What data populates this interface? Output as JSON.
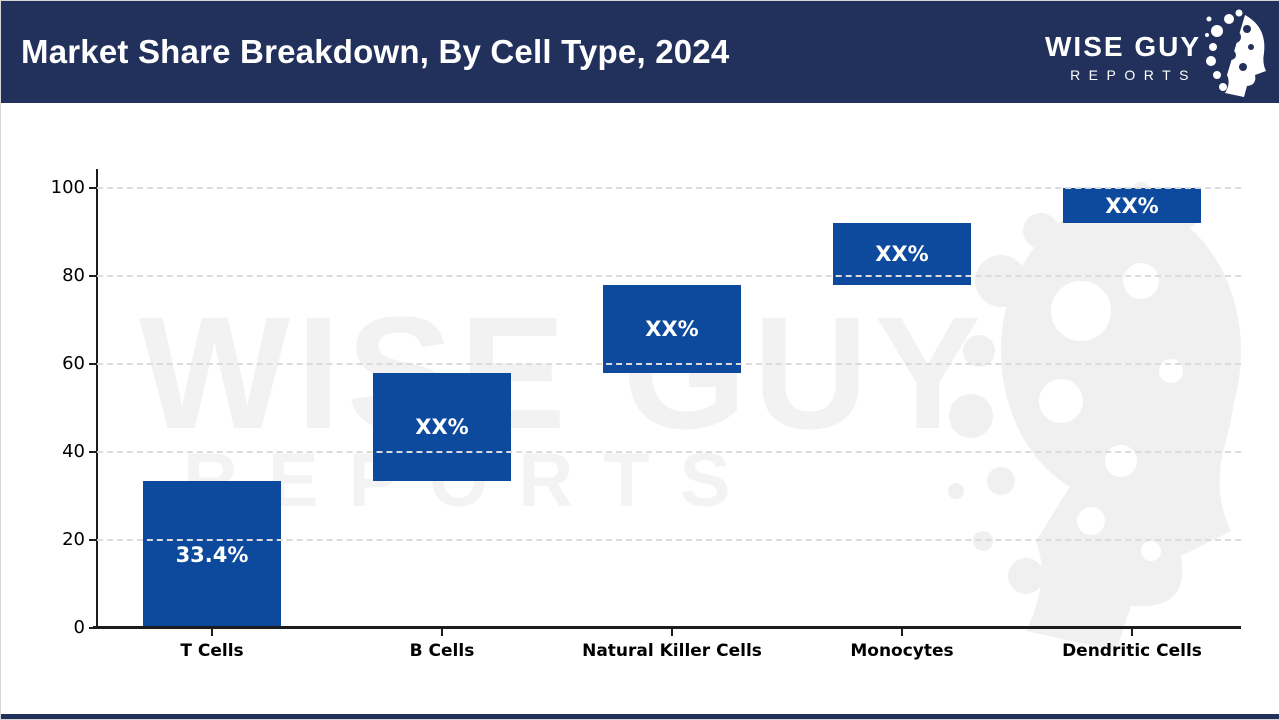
{
  "header": {
    "title": "Market Share Breakdown, By Cell Type, 2024",
    "logo_line1": "WISE GUY",
    "logo_line2": "REPORTS"
  },
  "watermark": {
    "line1": "WISE GUY",
    "line2": "REPORTS"
  },
  "chart_data": {
    "type": "bar",
    "variant": "waterfall",
    "title": "Market Share Breakdown, By Cell Type, 2024",
    "categories": [
      "T Cells",
      "B Cells",
      "Natural Killer Cells",
      "Monocytes",
      "Dendritic Cells"
    ],
    "segments": [
      {
        "category": "T Cells",
        "start": 0,
        "end": 33.4,
        "label": "33.4%"
      },
      {
        "category": "B Cells",
        "start": 33.4,
        "end": 57.9,
        "label": "XX%"
      },
      {
        "category": "Natural Killer Cells",
        "start": 57.9,
        "end": 77.9,
        "label": "XX%"
      },
      {
        "category": "Monocytes",
        "start": 77.9,
        "end": 92,
        "label": "XX%"
      },
      {
        "category": "Dendritic Cells",
        "start": 92,
        "end": 100,
        "label": "XX%"
      }
    ],
    "yticks": [
      0,
      20,
      40,
      60,
      80,
      100
    ],
    "ylim": [
      0,
      100
    ],
    "xlabel": "",
    "ylabel": "",
    "legend": "none",
    "grid": "horizontal-dashed"
  },
  "colors": {
    "header_bg": "#22305C",
    "footer_bg": "#22305C",
    "bar": "#0d4a9e",
    "gridline": "#dcdcdc",
    "axis": "#1c1c1c",
    "watermark": "#f2f2f2"
  }
}
